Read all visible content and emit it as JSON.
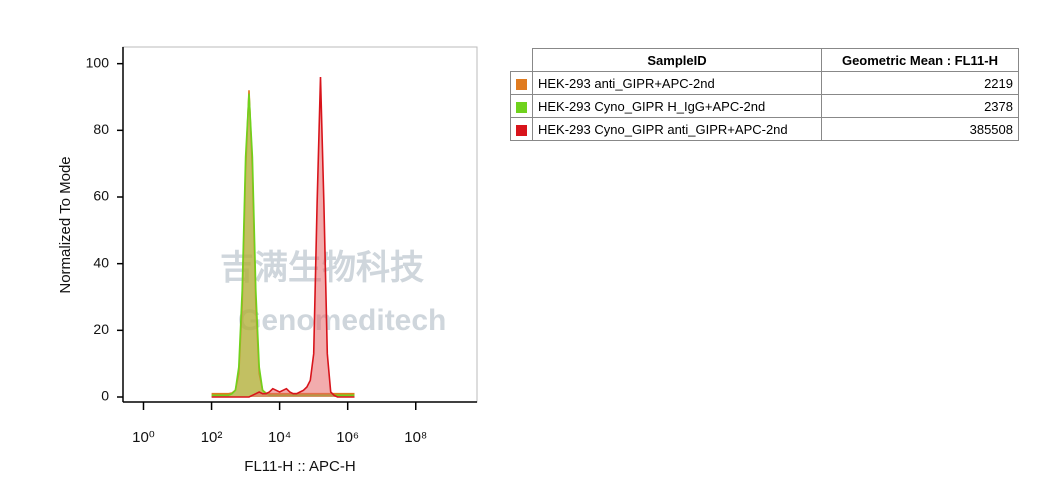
{
  "chart_data": {
    "type": "area",
    "x_label": "FL11-H :: APC-H",
    "y_label": "Normalized To Mode",
    "x_log": true,
    "xlim": [
      0.25,
      6300000000
    ],
    "xticks": [
      {
        "value": 1,
        "label": "10⁰"
      },
      {
        "value": 100,
        "label": "10²"
      },
      {
        "value": 10000,
        "label": "10⁴"
      },
      {
        "value": 1000000,
        "label": "10⁶"
      },
      {
        "value": 100000000,
        "label": "10⁸"
      }
    ],
    "ylim": [
      -1.5,
      105
    ],
    "yticks": [
      0,
      20,
      40,
      60,
      80,
      100
    ],
    "watermark": [
      "吉满生物科技",
      "Genomeditech"
    ],
    "table_headers": [
      "SampleID",
      "Geometric Mean : FL11-H"
    ],
    "x": [
      100,
      126,
      158,
      200,
      251,
      316,
      398,
      501,
      631,
      794,
      1000,
      1259,
      1585,
      1995,
      2512,
      3162,
      3981,
      5012,
      6310,
      7943,
      10000,
      12589,
      15849,
      19953,
      25119,
      31623,
      39811,
      50119,
      63096,
      79433,
      100000,
      125893,
      158489,
      199526,
      251189,
      316228,
      398107,
      501187,
      630957,
      794328,
      1000000,
      1258925,
      1584893
    ],
    "series": [
      {
        "name": "HEK-293 anti_GIPR+APC-2nd",
        "color": "#e07b1f",
        "fill": "#c8a03a",
        "geometric_mean": 2219,
        "values": [
          1,
          1,
          1,
          1,
          1,
          1,
          1.2,
          2,
          7,
          28,
          68,
          92,
          68,
          28,
          7,
          2,
          1.2,
          1,
          1,
          1,
          1,
          1,
          1,
          1,
          1,
          1,
          1,
          1,
          1,
          1,
          1,
          1,
          1,
          1,
          1,
          1,
          1,
          1,
          1,
          1,
          1,
          1,
          1
        ]
      },
      {
        "name": "HEK-293 Cyno_GIPR H_IgG+APC-2nd",
        "color": "#6fd21c",
        "fill": "#a9b83a",
        "geometric_mean": 2378,
        "values": [
          0.5,
          0.5,
          0.5,
          0.5,
          0.5,
          0.5,
          1,
          2,
          9,
          32,
          72,
          91,
          72,
          32,
          9,
          2,
          1,
          0.5,
          0.5,
          0.5,
          0.5,
          0.5,
          0.5,
          0.5,
          0.5,
          0.5,
          0.5,
          0.5,
          0.5,
          0.5,
          0.5,
          0.5,
          0.5,
          0.5,
          0.5,
          0.5,
          0.5,
          0.5,
          0.5,
          0.5,
          0.5,
          0.5,
          0.5
        ]
      },
      {
        "name": "HEK-293 Cyno_GIPR anti_GIPR+APC-2nd",
        "color": "#d8141b",
        "fill": "#e8676a",
        "geometric_mean": 385508,
        "values": [
          0,
          0,
          0,
          0,
          0,
          0,
          0,
          0,
          0,
          0,
          0,
          0,
          0.5,
          1,
          1.5,
          1,
          1,
          1.5,
          2.5,
          2,
          1.5,
          2,
          2.5,
          1.5,
          1,
          1,
          1.5,
          2,
          3,
          5,
          13,
          58,
          96,
          58,
          13,
          1.5,
          0.5,
          0,
          0,
          0,
          0,
          0,
          0
        ]
      }
    ]
  }
}
